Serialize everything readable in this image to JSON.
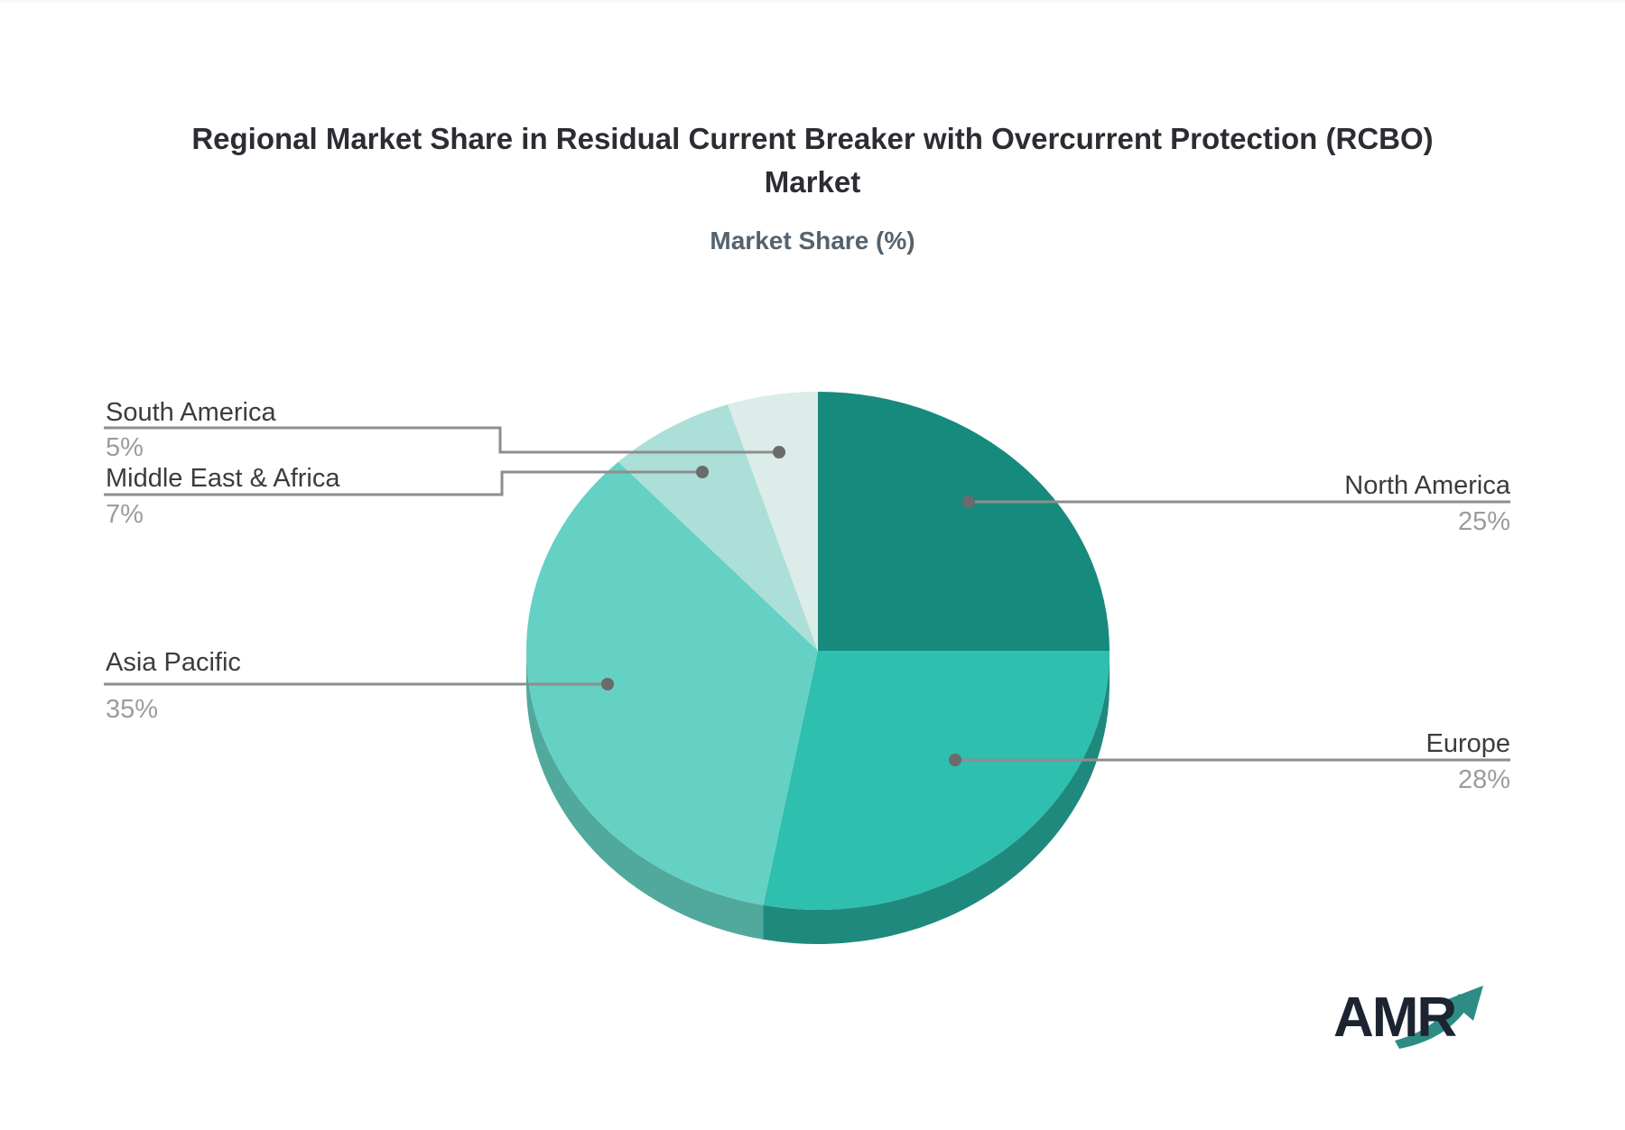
{
  "header": {
    "title_line1": "Regional Market Share in Residual Current Breaker with Overcurrent Protection (RCBO)",
    "title_line2": "Market",
    "subtitle": "Market Share (%)"
  },
  "chart_data": {
    "type": "pie",
    "title": "Regional Market Share in Residual Current Breaker with Overcurrent Protection (RCBO) Market",
    "subtitle": "Market Share (%)",
    "unit": "%",
    "labels": [
      "North America",
      "Europe",
      "Asia Pacific",
      "Middle East & Africa",
      "South America"
    ],
    "values": [
      25,
      28,
      35,
      7,
      5
    ],
    "display_values": [
      "25%",
      "28%",
      "35%",
      "7%",
      "5%"
    ],
    "colors": [
      "#168A7D",
      "#2EBFAE",
      "#65D0C4",
      "#ABDFD8",
      "#DCECE8"
    ],
    "side_colors": [
      "",
      "#20897E",
      "#50A99C",
      "",
      ""
    ],
    "start_angle_deg": 0,
    "direction": "clockwise",
    "effect": "3d",
    "legend": "none",
    "callout_line_color": "#8E8E8E",
    "callout_dot_color": "#6B6B6B"
  },
  "logo": {
    "text": "AMR",
    "arrow_color": "#2E8C85"
  }
}
